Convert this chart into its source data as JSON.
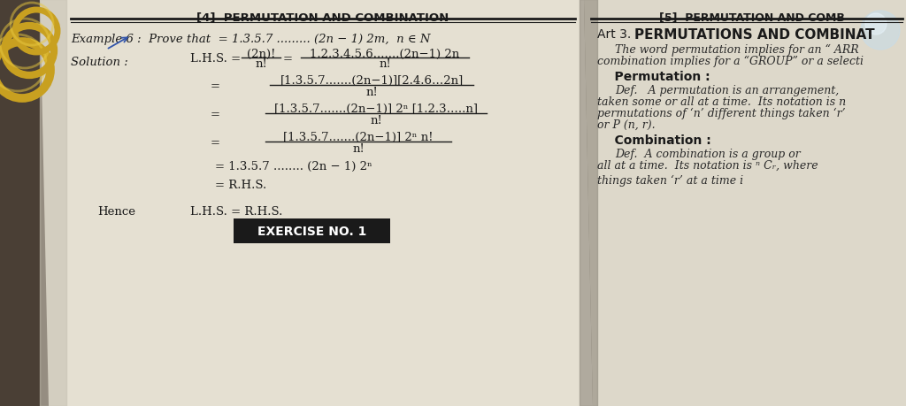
{
  "bg_color": "#5a5045",
  "left_page_color": "#e8e3d5",
  "right_page_color": "#ddd8c8",
  "spine_color": "#b0a898",
  "title_left": "[4]  PERMUTATION AND COMBINATION",
  "title_right": "[5]  PERMUTATION AND COMB",
  "example_line": "Example 6 :  Prove that  = 1.3.5.7 ......... (2n − 1) 2m,  n ∈ N",
  "solution_label": "Solution :",
  "art3_title_small": "Art 3.",
  "art3_title_big": "PERMUTATIONS AND COMBINAT",
  "art3_line1": "    The word permutation implies for an “ ARR",
  "art3_line2": "combination implies for a “GROUP” or a selecti",
  "perm_title": "Permutation :",
  "perm_def1": "    Def.   A permutation is an arrangement,",
  "perm_def2": "taken some or all at a time.  Its notation is n",
  "perm_def3": "permutations of ‘n’ different things taken ‘r’",
  "perm_def4": "or P (n, r).",
  "comb_title": "Combination :",
  "comb_def1": "    Def.  A combination is a group or",
  "comb_def2": "all at a time.  Its notation is n Cᵣ, where",
  "comb_def3": "things taken ‘r’ at a time i",
  "exercise_label": "EXERCISE NO. 1"
}
